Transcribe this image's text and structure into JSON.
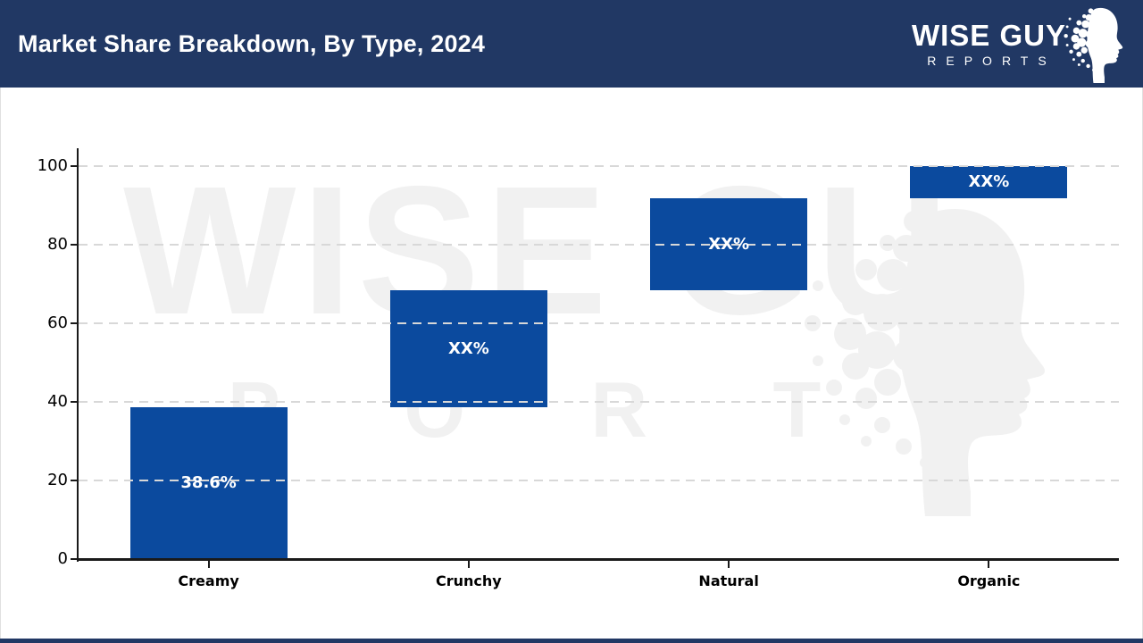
{
  "header": {
    "title": "Market Share Breakdown, By Type, 2024",
    "logo": {
      "line1": "WISE GUY",
      "line2": "REPORTS"
    }
  },
  "watermark": {
    "line1": "WISE GU",
    "line2": "P O R T S"
  },
  "colors": {
    "header_bg": "#213864",
    "bar": "#0b4a9e",
    "grid": "#d8d8d8",
    "axis": "#1a1a1a",
    "watermark": "#f1f1f1"
  },
  "chart_data": {
    "type": "bar",
    "variant": "waterfall",
    "title": "Market Share Breakdown, By Type, 2024",
    "categories": [
      "Creamy",
      "Crunchy",
      "Natural",
      "Organic"
    ],
    "segments": [
      {
        "category": "Creamy",
        "start": 0,
        "end": 38.6,
        "value": 38.6,
        "label": "38.6%"
      },
      {
        "category": "Crunchy",
        "start": 38.6,
        "end": 68.3,
        "value": 29.7,
        "label": "XX%"
      },
      {
        "category": "Natural",
        "start": 68.3,
        "end": 91.8,
        "value": 23.5,
        "label": "XX%"
      },
      {
        "category": "Organic",
        "start": 91.8,
        "end": 100,
        "value": 8.2,
        "label": "XX%"
      }
    ],
    "yticks": [
      0,
      20,
      40,
      60,
      80,
      100
    ],
    "ylim": [
      0,
      104
    ],
    "xlabel": "",
    "ylabel": "",
    "grid": "horizontal-dashed",
    "legend": "none",
    "bar_color": "#0b4a9e"
  }
}
